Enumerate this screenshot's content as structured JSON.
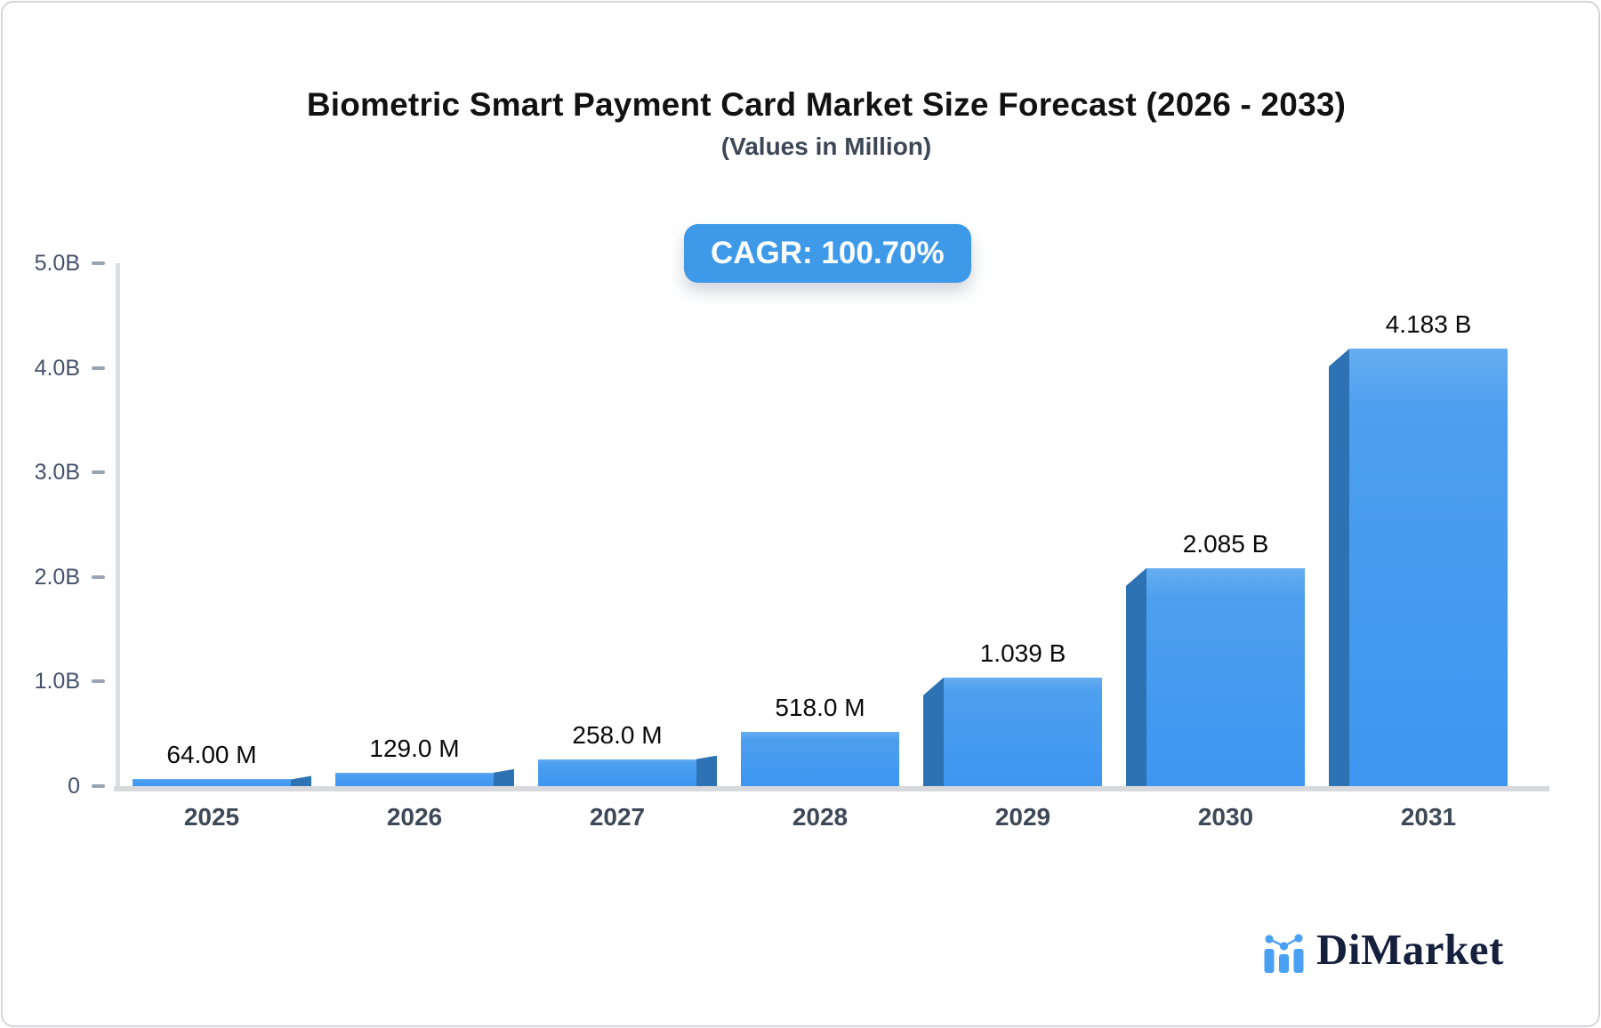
{
  "title": "Biometric Smart Payment Card Market Size Forecast (2026 - 2033)",
  "subtitle": "(Values in Million)",
  "cagr_badge": "CAGR: 100.70%",
  "logo": {
    "name": "DiMarket"
  },
  "colors": {
    "badge_bg": "#3e9ae8",
    "bar_face_top": "#66adf1",
    "bar_face_bottom": "#3e96f0",
    "bar_side": "#2d72b2",
    "axis_line": "#dadde2",
    "baseline": "#d7d9dd",
    "tick": "#9aa3b0",
    "logo_blue": "#4aa0f3",
    "logo_navy": "#14203c"
  },
  "chart_data": {
    "type": "bar",
    "title": "Biometric Smart Payment Card Market Size Forecast (2026 - 2033)",
    "subtitle": "(Values in Million)",
    "cagr_percent": 100.7,
    "categories": [
      "2025",
      "2026",
      "2027",
      "2028",
      "2029",
      "2030",
      "2031"
    ],
    "values_millions": [
      64.0,
      129.0,
      258.0,
      518.0,
      1039,
      2085,
      4183
    ],
    "bar_value_labels": [
      "64.00 M",
      "129.0 M",
      "258.0 M",
      "518.0 M",
      "1.039 B",
      "2.085 B",
      "4.183 B"
    ],
    "y_axis_tick_labels": [
      "5.0B",
      "4.0B",
      "3.0B",
      "2.0B",
      "1.0B",
      "0"
    ],
    "y_axis_tick_values_billions": [
      5,
      4,
      3,
      2,
      1,
      0
    ],
    "ylim_billions": [
      0,
      5
    ],
    "grid": false,
    "legend": "none",
    "bar_3d_side": [
      "right",
      "right",
      "right",
      "none",
      "left",
      "left",
      "left"
    ]
  }
}
